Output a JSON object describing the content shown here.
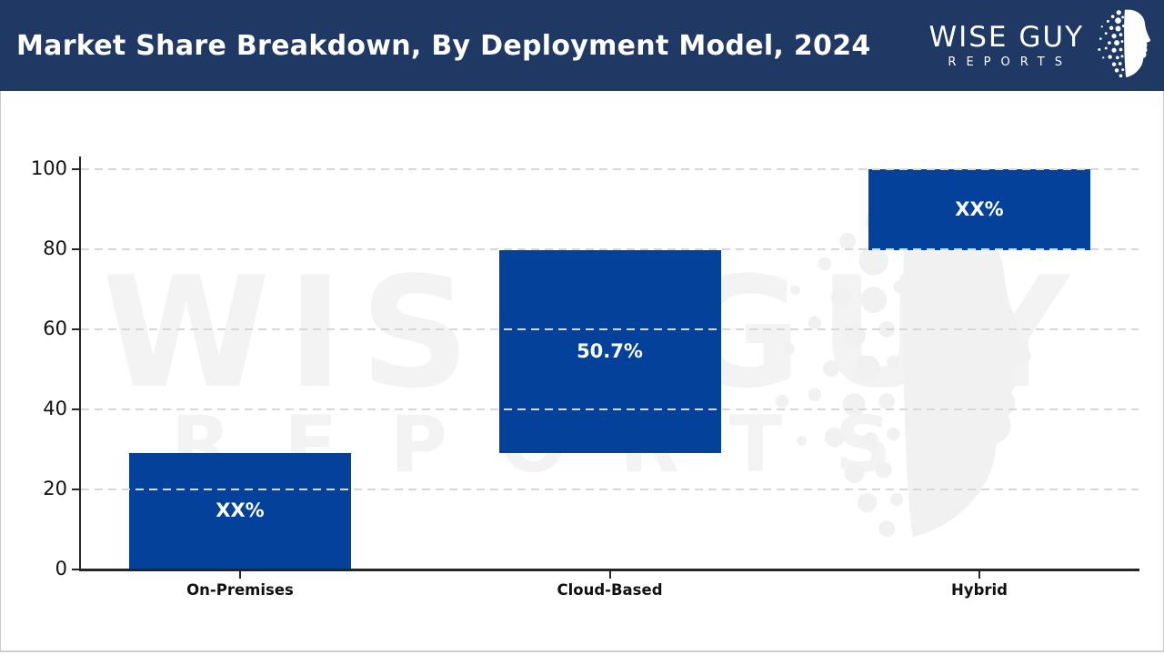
{
  "header": {
    "title": "Market Share Breakdown, By Deployment Model, 2024",
    "background_color": "#1f3864",
    "logo": {
      "line1": "WISE GUY",
      "line2": "REPORTS"
    }
  },
  "watermark": {
    "line1": "WISE GUY",
    "line2": "REPORTS"
  },
  "chart_data": {
    "type": "bar",
    "subtype": "waterfall-stacked",
    "title": "Market Share Breakdown, By Deployment Model, 2024",
    "categories": [
      "On-Premises",
      "Cloud-Based",
      "Hybrid"
    ],
    "series": [
      {
        "name": "Market share (%)",
        "segments": [
          {
            "category": "On-Premises",
            "start": 0,
            "end": 29,
            "label": "XX%"
          },
          {
            "category": "Cloud-Based",
            "start": 29,
            "end": 79.7,
            "label": "50.7%"
          },
          {
            "category": "Hybrid",
            "start": 79.7,
            "end": 100,
            "label": "XX%"
          }
        ]
      }
    ],
    "xlabel": "",
    "ylabel": "",
    "ylim": [
      0,
      100
    ],
    "yticks": [
      0,
      20,
      40,
      60,
      80,
      100
    ],
    "grid": "horizontal-dashed",
    "legend_position": "none",
    "bar_color": "#04419b",
    "bar_label_color": "#ffffff",
    "grid_color": "#d8d8d8",
    "axis_color": "#262626"
  }
}
